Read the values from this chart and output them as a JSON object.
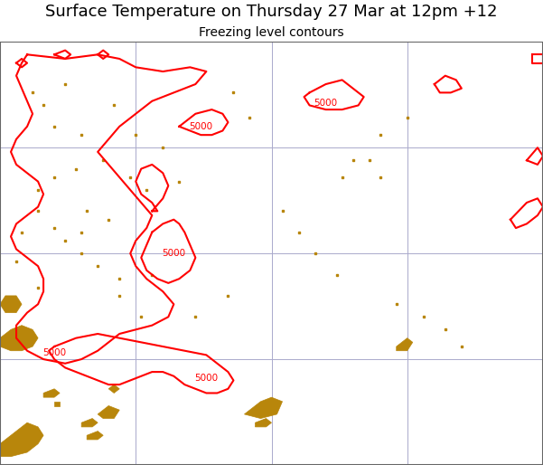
{
  "title": "Surface Temperature on Thursday 27 Mar at 12pm +12",
  "subtitle": "Freezing level contours",
  "title_fontsize": 13,
  "subtitle_fontsize": 10,
  "background_color": "#c8d4e8",
  "map_bg_color": "#c8d4e8",
  "header_bg_color": "#ffffff",
  "border_color": "#888888",
  "grid_color": "#aaaacc",
  "contour_color": "#ff0000",
  "land_color": "#b8860b",
  "contour_label": "5000",
  "figsize": [
    6.01,
    5.14
  ],
  "dpi": 100
}
